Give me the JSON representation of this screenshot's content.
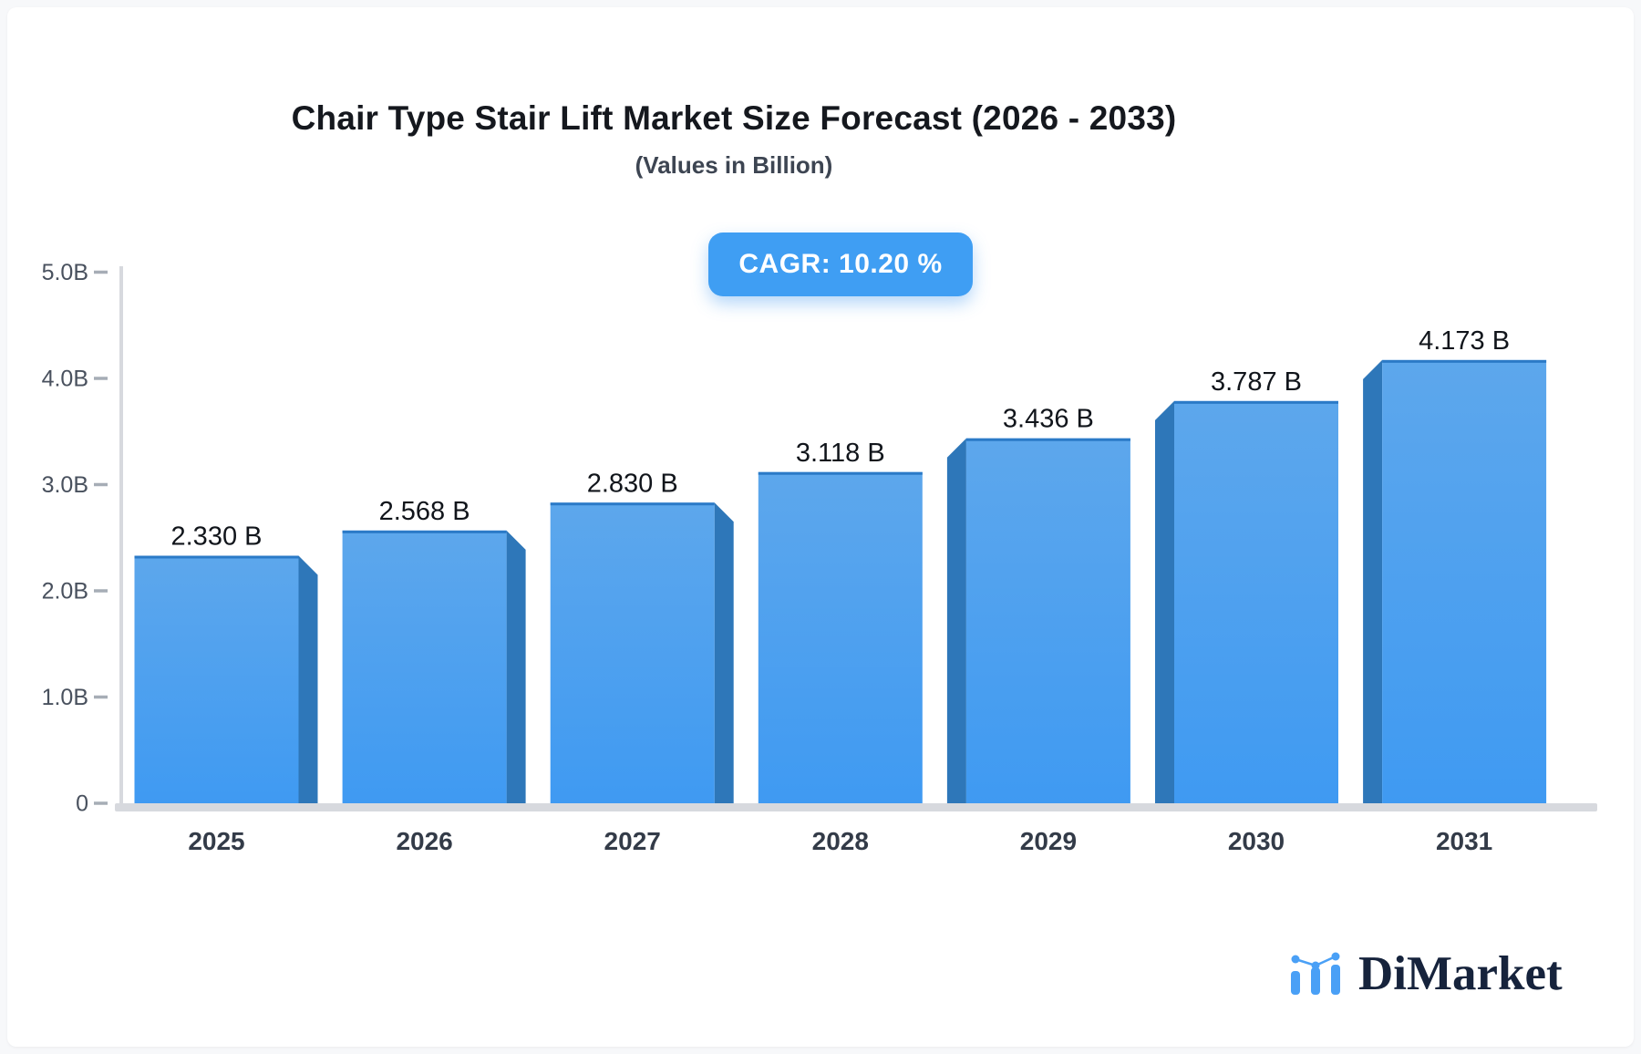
{
  "chart_data": {
    "type": "bar",
    "title": "Chair Type Stair Lift Market Size Forecast (2026 - 2033)",
    "subtitle": "(Values in Billion)",
    "cagr_label": "CAGR: 10.20 %",
    "categories": [
      "2025",
      "2026",
      "2027",
      "2028",
      "2029",
      "2030",
      "2031"
    ],
    "values": [
      2.33,
      2.568,
      2.83,
      3.118,
      3.436,
      3.787,
      4.173
    ],
    "value_labels": [
      "2.330 B",
      "2.568 B",
      "2.830 B",
      "3.118 B",
      "3.436 B",
      "3.787 B",
      "4.173 B"
    ],
    "y_ticks": [
      {
        "label": "5.0B",
        "value": 5.0
      },
      {
        "label": "4.0B",
        "value": 4.0
      },
      {
        "label": "3.0B",
        "value": 3.0
      },
      {
        "label": "2.0B",
        "value": 2.0
      },
      {
        "label": "1.0B",
        "value": 1.0
      },
      {
        "label": "0",
        "value": 0.0
      }
    ],
    "ylim": [
      0,
      5.0
    ],
    "xlabel": "",
    "ylabel": "",
    "grid": false,
    "legend": "none",
    "colors": {
      "bar_face_top": "#5da7ec",
      "bar_face_bottom": "#3f9af2",
      "bar_side": "#2e77b9",
      "bar_top_edge": "#2b7ac7",
      "axis_line": "#d7d9de",
      "tick_dash": "#a6adb6",
      "badge_bg": "#3f9ef3",
      "logo_blue": "#4aa0f6",
      "logo_text": "#16233c"
    }
  },
  "footer": {
    "brand": "DiMarket"
  }
}
